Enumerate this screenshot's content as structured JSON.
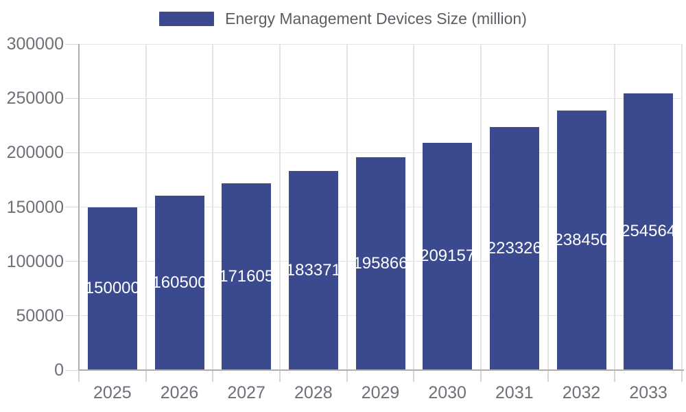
{
  "legend": {
    "label": "Energy Management Devices Size (million)"
  },
  "colors": {
    "bar": "#3b4a8e",
    "bar_label_text": "#ffffff",
    "axis_text": "#6e7079",
    "legend_text": "#5b5e64",
    "axis_line": "#aeaeae",
    "grid_line": "#e3e3e7",
    "tick_line": "#d6d6da",
    "background": "#ffffff"
  },
  "chart_data": {
    "type": "bar",
    "title": "Energy Management Devices Size (million)",
    "categories": [
      "2025",
      "2026",
      "2027",
      "2028",
      "2029",
      "2030",
      "2031",
      "2032",
      "2033"
    ],
    "series": [
      {
        "name": "Energy Management Devices Size (million)",
        "values": [
          150000,
          160500,
          171605,
          183371,
          195866,
          209157,
          223326,
          238450,
          254564
        ]
      }
    ],
    "xlabel": "",
    "ylabel": "",
    "ylim": [
      0,
      300000
    ],
    "yticks": [
      0,
      50000,
      100000,
      150000,
      200000,
      250000,
      300000
    ],
    "grid": true,
    "legend_position": "top-center",
    "bar_label_position": "inside-middle"
  }
}
